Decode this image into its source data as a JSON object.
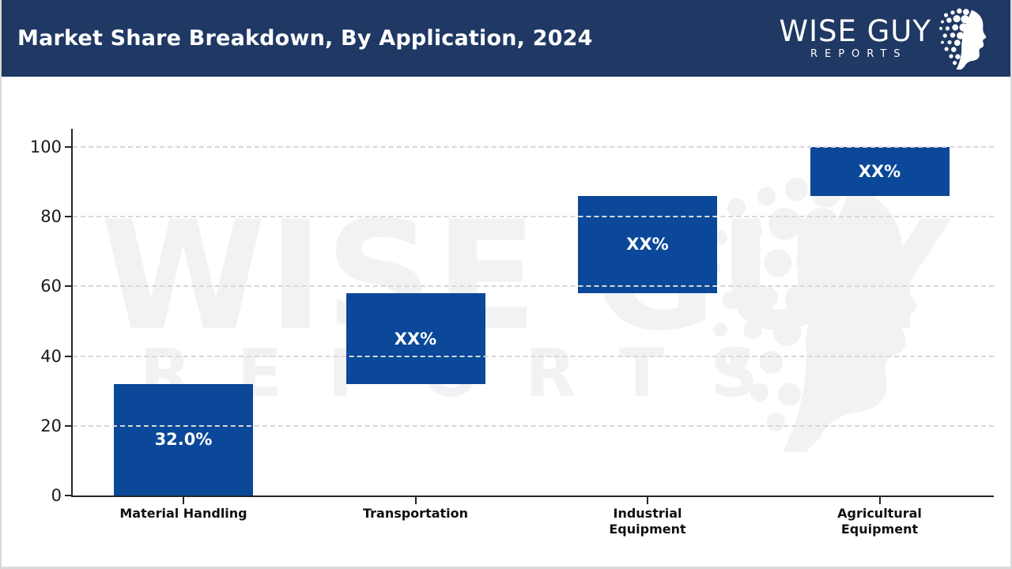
{
  "header": {
    "title": "Market Share Breakdown, By Application, 2024",
    "logo": {
      "line1": "WISE GUY",
      "line2": "REPORTS"
    }
  },
  "watermark": {
    "line1": "WISE GUY",
    "line2": "REPORTS"
  },
  "colors": {
    "header_bg": "#1f3864",
    "bar": "#0b4899",
    "grid": "#d8d8d8",
    "axis": "#262626",
    "watermark": "#f2f2f4",
    "value_label": "#ffffff"
  },
  "chart_data": {
    "type": "bar",
    "subtype": "waterfall",
    "title": "Market Share Breakdown, By Application, 2024",
    "categories": [
      "Material Handling",
      "Transportation",
      "Industrial Equipment",
      "Agricultural Equipment"
    ],
    "category_lines": [
      [
        "Material Handling"
      ],
      [
        "Transportation"
      ],
      [
        "Industrial",
        "Equipment"
      ],
      [
        "Agricultural",
        "Equipment"
      ]
    ],
    "segments": [
      {
        "category": "Material Handling",
        "start": 0,
        "end": 32,
        "label": "32.0%"
      },
      {
        "category": "Transportation",
        "start": 32,
        "end": 58,
        "label": "XX%"
      },
      {
        "category": "Industrial Equipment",
        "start": 58,
        "end": 86,
        "label": "XX%"
      },
      {
        "category": "Agricultural Equipment",
        "start": 86,
        "end": 100,
        "label": "XX%"
      }
    ],
    "ylabel": "",
    "xlabel": "",
    "yticks": [
      0,
      20,
      40,
      60,
      80,
      100
    ],
    "ylim": [
      0,
      105
    ],
    "grid": "horizontal-dashed",
    "legend_position": "none"
  }
}
